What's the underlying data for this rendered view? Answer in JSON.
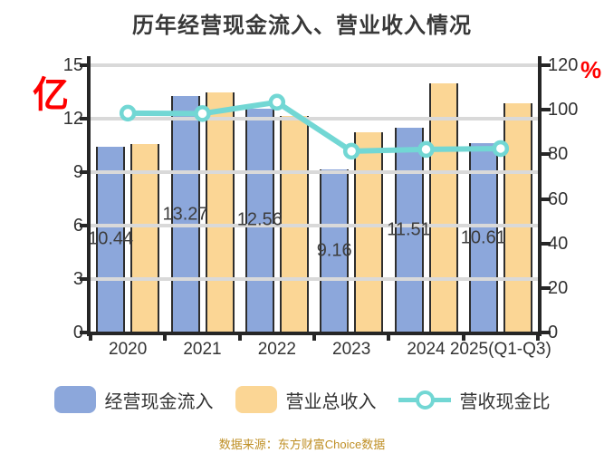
{
  "title": "历年经营现金流入、营业收入情况",
  "left_axis": {
    "unit": "亿",
    "unit_color": "#fe0000",
    "ticks": [
      0,
      3,
      6,
      9,
      12,
      15
    ]
  },
  "right_axis": {
    "unit": "%",
    "unit_color": "#fe0000",
    "ticks": [
      0,
      20,
      40,
      60,
      80,
      100,
      120
    ]
  },
  "chart_data": {
    "type": "bar",
    "categories": [
      "2020",
      "2021",
      "2022",
      "2023",
      "2024",
      "2025(Q1-Q3)"
    ],
    "series": [
      {
        "name": "经营现金流入",
        "type": "bar",
        "axis": "left",
        "color": "#8ca7db",
        "values": [
          10.44,
          13.27,
          12.56,
          9.16,
          11.51,
          10.61
        ],
        "labels": [
          "10.44",
          "13.27",
          "12.56",
          "9.16",
          "11.51",
          "10.61"
        ]
      },
      {
        "name": "营业总收入",
        "type": "bar",
        "axis": "left",
        "color": "#fbd695",
        "values": [
          10.6,
          13.5,
          12.15,
          11.25,
          14.0,
          12.85
        ]
      },
      {
        "name": "营收现金比",
        "type": "line",
        "axis": "right",
        "color": "#72d7d4",
        "values": [
          98.5,
          98.3,
          103.4,
          81.4,
          82.2,
          82.6
        ]
      }
    ],
    "title": "历年经营现金流入、营业收入情况",
    "xlabel": "",
    "ylabel_left": "亿",
    "ylabel_right": "%",
    "left_ylim": [
      0,
      15
    ],
    "right_ylim": [
      0,
      120
    ],
    "grid": true,
    "legend_position": "bottom"
  },
  "legend": {
    "items": [
      {
        "label": "经营现金流入"
      },
      {
        "label": "营业总收入"
      },
      {
        "label": "营收现金比"
      }
    ]
  },
  "caption": "数据来源：东方财富Choice数据",
  "colors": {
    "bar_blue": "#8ca7db",
    "bar_yellow": "#fbd695",
    "line_cyan": "#72d7d4",
    "grid": "#d9d9d9",
    "axis": "#262626",
    "unit_red": "#fe0000",
    "caption_gold": "#bf8f25"
  }
}
